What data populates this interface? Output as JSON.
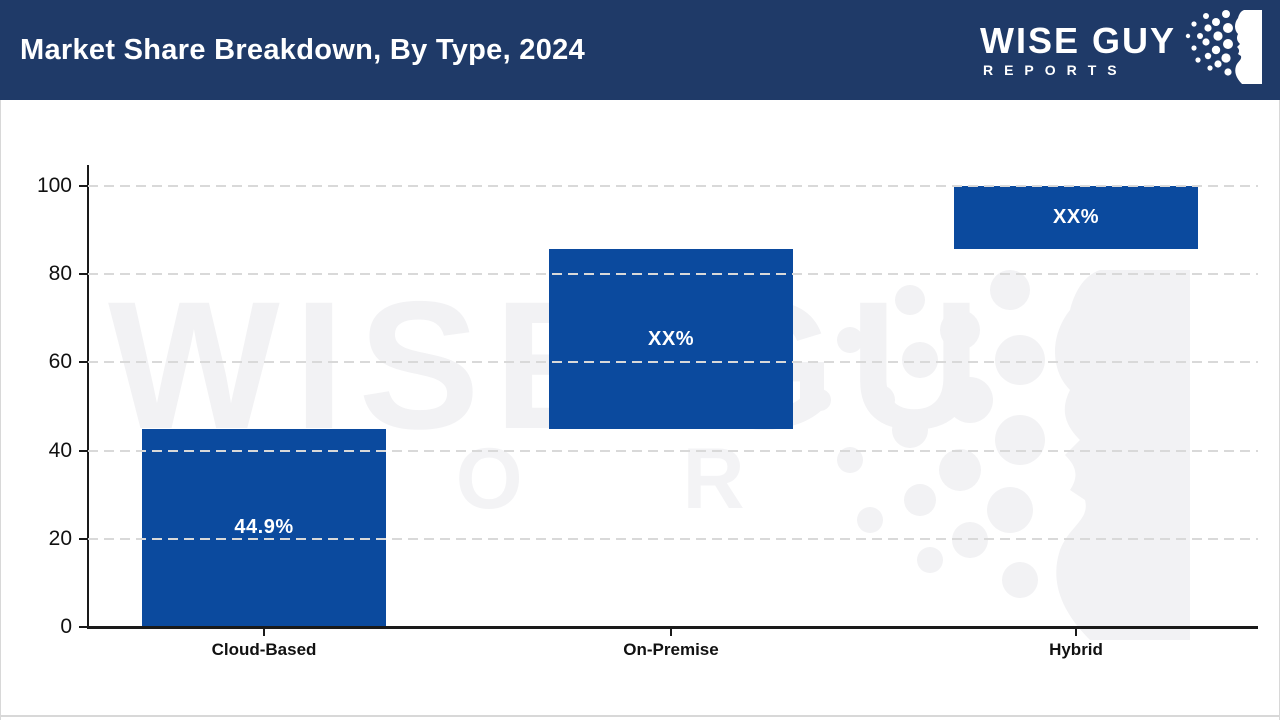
{
  "header": {
    "title": "Market Share Breakdown, By Type, 2024",
    "logo": {
      "line1": "WISE GUY",
      "line2": "REPORTS"
    }
  },
  "watermark": {
    "line1": "WISE GU",
    "line2": "P O R"
  },
  "chart_data": {
    "type": "bar",
    "subtype": "stacked-waterfall-segments",
    "title": "Market Share Breakdown, By Type, 2024",
    "categories": [
      "Cloud-Based",
      "On-Premise",
      "Hybrid"
    ],
    "segments": [
      {
        "category": "Cloud-Based",
        "start": 0,
        "end": 44.9,
        "label": "44.9%"
      },
      {
        "category": "On-Premise",
        "start": 44.9,
        "end": 85.7,
        "label": "XX%"
      },
      {
        "category": "Hybrid",
        "start": 85.7,
        "end": 100,
        "label": "XX%"
      }
    ],
    "xlabel": "",
    "ylabel": "",
    "ylim": [
      0,
      100
    ],
    "yticks": [
      0,
      20,
      40,
      60,
      80,
      100
    ],
    "grid": "horizontal-dashed, drawn over bars",
    "legend": "none",
    "bar_color": "#0b4a9e",
    "bar_label_color": "#ffffff"
  },
  "colors": {
    "header_bg": "#1f3a68",
    "bar": "#0b4a9e",
    "grid": "#d9d9d9",
    "axis": "#1a1a1a",
    "watermark": "#f2f2f4",
    "background": "#ffffff"
  }
}
